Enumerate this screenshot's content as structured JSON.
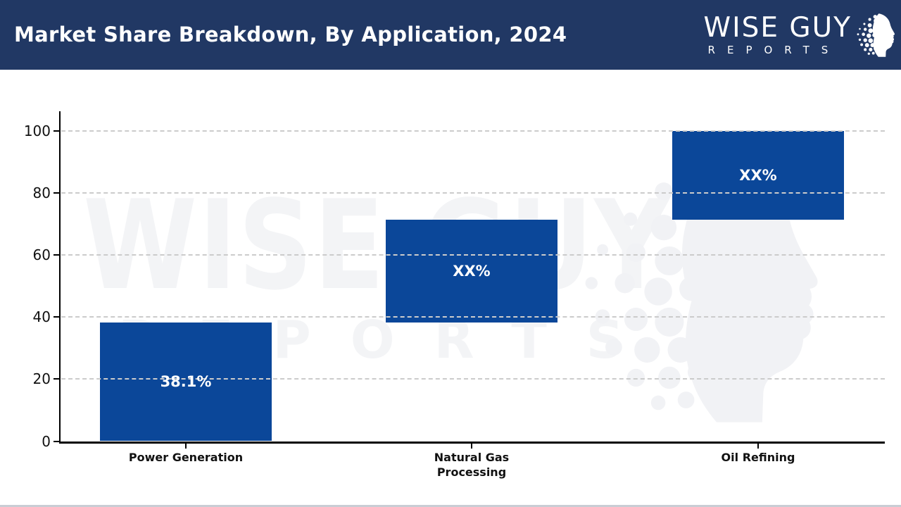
{
  "header": {
    "title": "Market Share Breakdown, By Application, 2024",
    "logo": {
      "line1": "WISE GUY",
      "line2": "REPORTS"
    }
  },
  "watermark": {
    "line1": "WISE GUY",
    "line2": "REPORTS"
  },
  "chart_data": {
    "type": "bar",
    "variant": "stacked-progression: each bar starts where the previous one ends",
    "title": "Market Share Breakdown, By Application, 2024",
    "categories": [
      "Power Generation",
      "Natural Gas Processing",
      "Oil Refining"
    ],
    "category_lines": [
      [
        "Power Generation"
      ],
      [
        "Natural Gas",
        "Processing"
      ],
      [
        "Oil Refining"
      ]
    ],
    "segments": [
      {
        "category": "Power Generation",
        "start": 0,
        "end": 38.1,
        "value_label": "38.1%"
      },
      {
        "category": "Natural Gas Processing",
        "start": 38.1,
        "end": 71.3,
        "value_label": "XX%"
      },
      {
        "category": "Oil Refining",
        "start": 71.3,
        "end": 100,
        "value_label": "XX%"
      }
    ],
    "values": [
      38.1,
      33.2,
      28.7
    ],
    "xlabel": "",
    "ylabel": "",
    "yticks": [
      0,
      20,
      40,
      60,
      80,
      100
    ],
    "ylim": [
      0,
      106
    ],
    "grid": "horizontal-dashed",
    "legend": "none",
    "bar_color": "#0b4799",
    "bar_label_color": "#ffffff"
  },
  "colors": {
    "header_bg": "#213864",
    "bar": "#0b4799",
    "gridline": "#cbcbcb",
    "axis": "#000000",
    "watermark": "#f2f3f6",
    "page_bg": "#ffffff",
    "footer_line": "#c9cdd4"
  }
}
